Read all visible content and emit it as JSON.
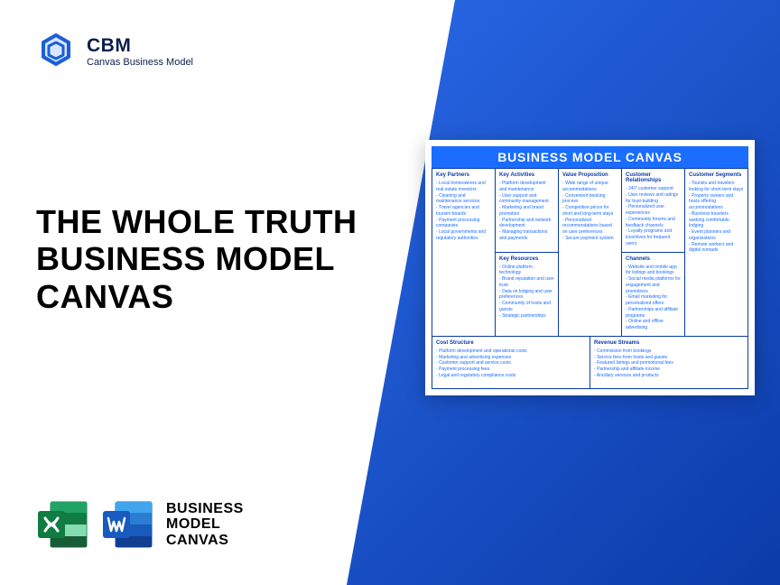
{
  "logo": {
    "title": "CBM",
    "subtitle": "Canvas Business Model"
  },
  "headline": {
    "line1": "THE WHOLE TRUTH",
    "line2": "BUSINESS MODEL",
    "line3": "CANVAS"
  },
  "appLabel": {
    "line1": "BUSINESS",
    "line2": "MODEL",
    "line3": "CANVAS"
  },
  "canvas": {
    "title": "BUSINESS MODEL CANVAS",
    "keyPartners": {
      "header": "Key Partners",
      "items": [
        "Local homeowners and real estate investors",
        "Cleaning and maintenance services",
        "Travel agencies and tourism boards",
        "Payment processing companies",
        "Local governments and regulatory authorities"
      ]
    },
    "keyActivities": {
      "header": "Key Activities",
      "items": [
        "Platform development and maintenance",
        "User support and community management",
        "Marketing and brand promotion",
        "Partnership and network development",
        "Managing transactions and payments"
      ]
    },
    "keyResources": {
      "header": "Key Resources",
      "items": [
        "Online platform technology",
        "Brand reputation and user trust",
        "Data on lodging and user preferences",
        "Community of hosts and guests",
        "Strategic partnerships"
      ]
    },
    "valueProposition": {
      "header": "Value Proposition",
      "items": [
        "Wide range of unique accommodations",
        "Convenient booking process",
        "Competitive prices for short and long-term stays",
        "Personalized recommendations based on user preferences",
        "Secure payment system"
      ]
    },
    "customerRelationships": {
      "header": "Customer Relationships",
      "items": [
        "24/7 customer support",
        "User reviews and ratings for trust-building",
        "Personalized user experiences",
        "Community forums and feedback channels",
        "Loyalty programs and incentives for frequent users"
      ]
    },
    "channels": {
      "header": "Channels",
      "items": [
        "Website and mobile app for listings and bookings",
        "Social media platforms for engagement and promotions",
        "Email marketing for personalized offers",
        "Partnerships and affiliate programs",
        "Online and offline advertising"
      ]
    },
    "customerSegments": {
      "header": "Customer Segments",
      "items": [
        "Tourists and travelers looking for short-term stays",
        "Property owners and hosts offering accommodations",
        "Business travelers seeking comfortable lodging",
        "Event planners and organizations",
        "Remote workers and digital nomads"
      ]
    },
    "costStructure": {
      "header": "Cost Structure",
      "items": [
        "Platform development and operational costs",
        "Marketing and advertising expenses",
        "Customer support and service costs",
        "Payment processing fees",
        "Legal and regulatory compliance costs"
      ]
    },
    "revenueStreams": {
      "header": "Revenue Streams",
      "items": [
        "Commission from bookings",
        "Service fees from hosts and guests",
        "Featured listings and promotional fees",
        "Partnership and affiliate income",
        "Ancillary services and products"
      ]
    }
  },
  "colors": {
    "brandBlue": "#1a6dff",
    "darkBlue": "#0b3ba8",
    "excelGreen": "#107c41",
    "wordBlue": "#185abd"
  }
}
